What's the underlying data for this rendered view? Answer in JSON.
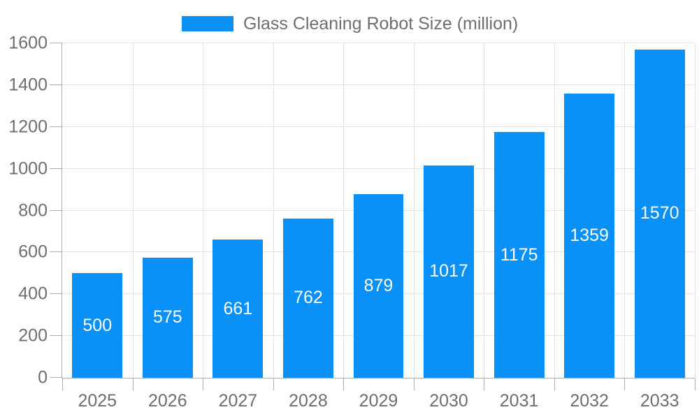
{
  "chart_data": {
    "type": "bar",
    "title": "Glass Cleaning Robot Size (million)",
    "categories": [
      "2025",
      "2026",
      "2027",
      "2028",
      "2029",
      "2030",
      "2031",
      "2032",
      "2033"
    ],
    "values": [
      500,
      575,
      661,
      762,
      879,
      1017,
      1175,
      1359,
      1570
    ],
    "xlabel": "",
    "ylabel": "",
    "ylim": [
      0,
      1600
    ],
    "yticks": [
      0,
      200,
      400,
      600,
      800,
      1000,
      1200,
      1400,
      1600
    ],
    "grid": true,
    "legend_position": "top-center",
    "value_labels": "centered-inside-bars",
    "bar_color": "#0991f7",
    "value_label_color": "#ffffff",
    "axis_text_color": "#6e6e6e",
    "grid_color": "#e3e3e3",
    "axis_line_color": "#adadad",
    "background": "#ffffff"
  }
}
